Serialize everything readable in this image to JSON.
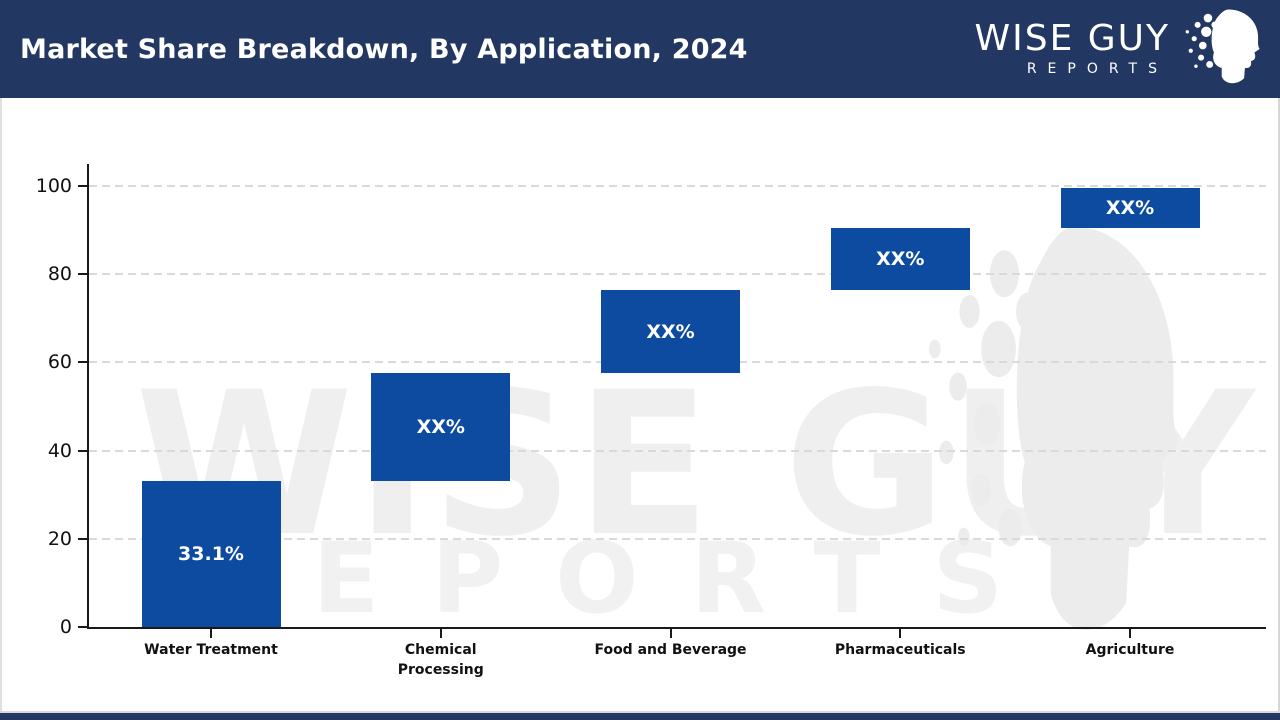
{
  "header": {
    "title": "Market Share Breakdown, By Application, 2024",
    "bg_color": "#223863",
    "logo": {
      "wordmark": "WISE GUY",
      "subtext": "REPORTS"
    }
  },
  "watermark": {
    "wordmark": "WISE GUY",
    "subtext": "REPORTS"
  },
  "chart_data": {
    "type": "bar",
    "subtype": "waterfall",
    "title": "Market Share Breakdown, By Application, 2024",
    "categories": [
      "Water Treatment",
      "Chemical Processing",
      "Food and Beverage",
      "Pharmaceuticals",
      "Agriculture"
    ],
    "segments": [
      {
        "category": "Water Treatment",
        "start": 0,
        "end": 33.1,
        "label": "33.1%"
      },
      {
        "category": "Chemical Processing",
        "start": 33.1,
        "end": 57.5,
        "label": "XX%"
      },
      {
        "category": "Food and Beverage",
        "start": 57.5,
        "end": 76.5,
        "label": "XX%"
      },
      {
        "category": "Pharmaceuticals",
        "start": 76.5,
        "end": 90.5,
        "label": "XX%"
      },
      {
        "category": "Agriculture",
        "start": 90.5,
        "end": 99.5,
        "label": "XX%"
      }
    ],
    "yticks": [
      0,
      20,
      40,
      60,
      80,
      100
    ],
    "ylim": [
      0,
      105
    ],
    "xlabel": "",
    "ylabel": "",
    "legend": "none",
    "grid": "horizontal-dashed",
    "bar_color": "#0c4b9f",
    "bar_label_color": "#ffffff",
    "axis_color": "#1a1a1a",
    "gridline_color": "#d9d9d9"
  },
  "footer": {
    "bg_color": "#223863"
  }
}
